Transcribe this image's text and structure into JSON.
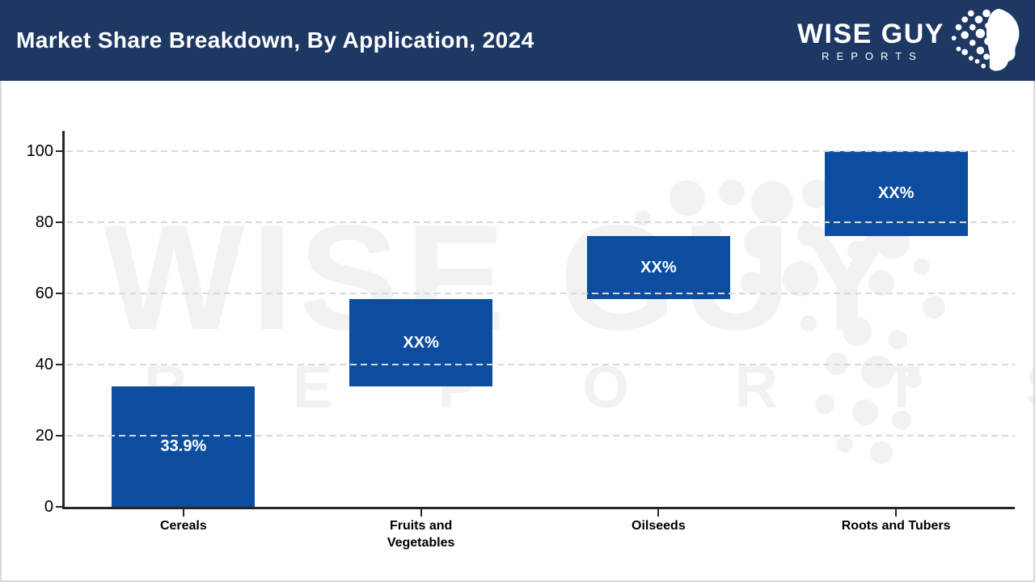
{
  "header": {
    "title": "Market Share Breakdown, By Application, 2024",
    "logo": {
      "wordmark": "WISE GUY",
      "subtext": "REPORTS"
    }
  },
  "watermark": {
    "wordmark": "WISE GUY",
    "subtext": "R E P O R T S"
  },
  "colors": {
    "header_bg": "#1e3864",
    "bar": "#0d4da0",
    "bar_label": "#ffffff",
    "axis": "#262626",
    "gridline": "#d9d9d9",
    "tick_label": "#000000",
    "watermark": "#f2f2f2"
  },
  "chart_data": {
    "type": "bar",
    "subtype": "waterfall",
    "title": "Market Share Breakdown, By Application, 2024",
    "categories": [
      "Cereals",
      "Fruits and\nVegetables",
      "Oilseeds",
      "Roots and Tubers"
    ],
    "segments": [
      {
        "category": "Cereals",
        "start": 0,
        "end": 33.9,
        "label": "33.9%"
      },
      {
        "category": "Fruits and\nVegetables",
        "start": 33.9,
        "end": 58.3,
        "label": "XX%"
      },
      {
        "category": "Oilseeds",
        "start": 58.3,
        "end": 76.1,
        "label": "XX%"
      },
      {
        "category": "Roots and Tubers",
        "start": 76.1,
        "end": 100,
        "label": "XX%"
      }
    ],
    "ylim": [
      0,
      100
    ],
    "yticks": [
      0,
      20,
      40,
      60,
      80,
      100
    ],
    "grid": "horizontal-dashed",
    "legend": "none",
    "xlabel": "",
    "ylabel": ""
  }
}
